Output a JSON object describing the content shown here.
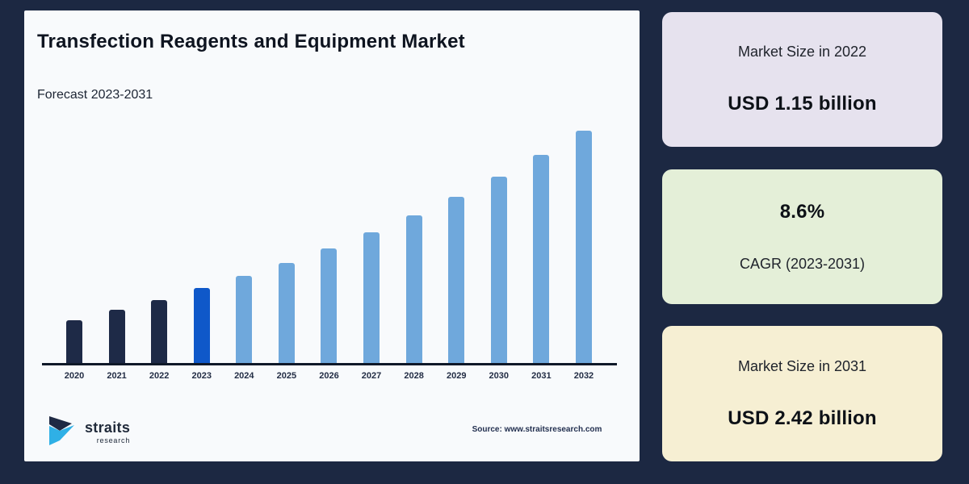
{
  "colors": {
    "page_bg": "#1c2842",
    "chart_card_bg": "#f8fafc",
    "axis": "#0f1828",
    "logo_navy": "#1f2a44",
    "logo_cyan": "#2fb0e6",
    "stat_card_1_bg": "#e6e2ee",
    "stat_card_2_bg": "#e4efd8",
    "stat_card_3_bg": "#f6efd3"
  },
  "chart_card": {
    "title": "Transfection Reagents and Equipment Market",
    "subtitle": "Forecast 2023-2031",
    "source": "Source: www.straitsresearch.com",
    "logo": {
      "name": "straits",
      "sub": "research"
    }
  },
  "chart_data": {
    "type": "bar",
    "title": "Transfection Reagents and Equipment Market",
    "subtitle": "Forecast 2023-2031",
    "categories": [
      "2020",
      "2021",
      "2022",
      "2023",
      "2024",
      "2025",
      "2026",
      "2027",
      "2028",
      "2029",
      "2030",
      "2031",
      "2032"
    ],
    "values": [
      0.97,
      1.06,
      1.15,
      1.25,
      1.36,
      1.47,
      1.6,
      1.74,
      1.89,
      2.05,
      2.23,
      2.42,
      2.63
    ],
    "unit": "USD billion",
    "colors": {
      "historical": "#1e2a47",
      "base_year": "#0f58c9",
      "forecast": "#6fa8dc"
    },
    "color_roles": [
      "historical",
      "historical",
      "historical",
      "base_year",
      "forecast",
      "forecast",
      "forecast",
      "forecast",
      "forecast",
      "forecast",
      "forecast",
      "forecast",
      "forecast"
    ],
    "xlabel": "",
    "ylabel": "",
    "grid": false,
    "legend": "none",
    "value_axis_hidden": true
  },
  "stat_cards": [
    {
      "label": "Market Size in 2022",
      "value": "USD 1.15 billion"
    },
    {
      "label": "CAGR (2023-2031)",
      "value": "8.6%"
    },
    {
      "label": "Market Size in 2031",
      "value": "USD 2.42 billion"
    }
  ]
}
